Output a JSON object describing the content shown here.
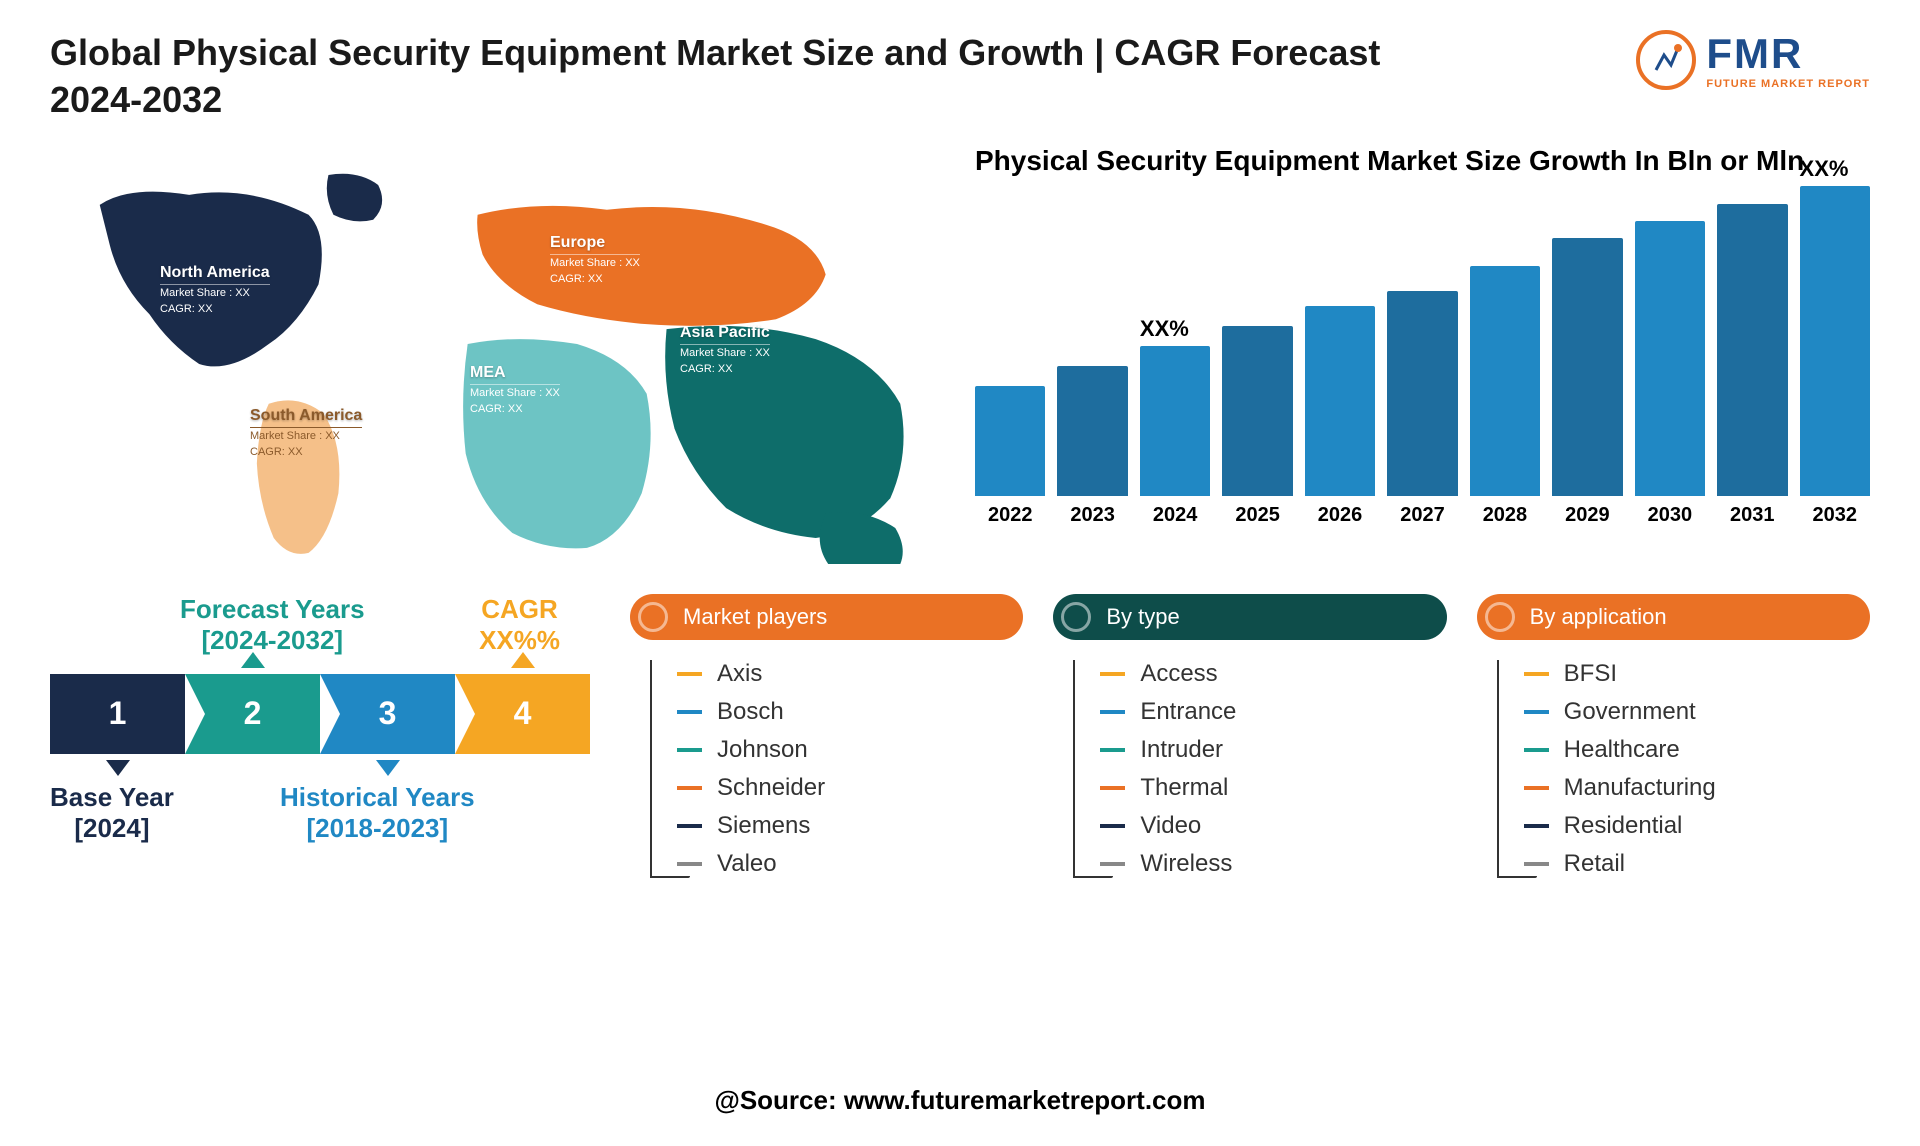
{
  "title": "Global Physical Security Equipment Market Size and Growth | CAGR Forecast 2024-2032",
  "logo": {
    "fm": "FMR",
    "tagline": "FUTURE MARKET REPORT"
  },
  "chart": {
    "title": "Physical Security Equipment Market Size Growth In Bln or Mln",
    "type": "bar",
    "years": [
      "2022",
      "2023",
      "2024",
      "2025",
      "2026",
      "2027",
      "2028",
      "2029",
      "2030",
      "2031",
      "2032"
    ],
    "heights": [
      110,
      130,
      150,
      170,
      190,
      205,
      230,
      258,
      275,
      292,
      310
    ],
    "colors": [
      "#2088c4",
      "#1e6d9e",
      "#2088c4",
      "#1e6d9e",
      "#2088c4",
      "#1e6d9e",
      "#2088c4",
      "#1e6d9e",
      "#2088c4",
      "#1e6d9e",
      "#2088c4"
    ],
    "annotations": [
      {
        "index": 2,
        "text": "XX%"
      },
      {
        "index": 10,
        "text": "XX%"
      }
    ],
    "label_fontsize": 20,
    "title_fontsize": 28,
    "background_color": "#ffffff"
  },
  "timeline": {
    "forecast_label": "Forecast Years\n[2024-2032]",
    "cagr_label": "CAGR\nXX%%",
    "base_label": "Base Year\n[2024]",
    "hist_label": "Historical Years\n[2018-2023]",
    "cells": [
      "1",
      "2",
      "3",
      "4"
    ],
    "colors": {
      "base": "#1a2b4a",
      "forecast": "#1a9b8e",
      "hist": "#2088c4",
      "cagr": "#f5a623"
    }
  },
  "categories": {
    "players": {
      "label": "Market players",
      "header_color": "#ea7125",
      "items": [
        "Axis",
        "Bosch",
        "Johnson",
        "Schneider",
        "Siemens",
        "Valeo"
      ],
      "dash_colors": [
        "#f5a623",
        "#2088c4",
        "#1a9b8e",
        "#ea7125",
        "#1a2b4a",
        "#888"
      ]
    },
    "type": {
      "label": "By type",
      "header_color": "#0e4d4a",
      "items": [
        "Access",
        "Entrance",
        "Intruder",
        "Thermal",
        "Video",
        "Wireless"
      ],
      "dash_colors": [
        "#f5a623",
        "#2088c4",
        "#1a9b8e",
        "#ea7125",
        "#1a2b4a",
        "#888"
      ]
    },
    "application": {
      "label": "By application",
      "header_color": "#ea7125",
      "items": [
        "BFSI",
        "Government",
        "Healthcare",
        "Manufacturing",
        "Residential",
        "Retail"
      ],
      "dash_colors": [
        "#f5a623",
        "#2088c4",
        "#1a9b8e",
        "#ea7125",
        "#1a2b4a",
        "#888"
      ]
    }
  },
  "map": {
    "regions": [
      {
        "name": "North America",
        "share": "Market Share : XX",
        "cagr": "CAGR: XX",
        "color": "#1a2b4a"
      },
      {
        "name": "South America",
        "share": "Market Share : XX",
        "cagr": "CAGR: XX",
        "color": "#f5c089",
        "text_color": "#8b5a2b"
      },
      {
        "name": "Europe",
        "share": "Market Share : XX",
        "cagr": "CAGR: XX",
        "color": "#ea7125"
      },
      {
        "name": "MEA",
        "share": "Market Share : XX",
        "cagr": "CAGR: XX",
        "color": "#6dc4c4"
      },
      {
        "name": "Asia Pacific",
        "share": "Market Share : XX",
        "cagr": "CAGR: XX",
        "color": "#0e6d6a"
      }
    ]
  },
  "source": "@Source: www.futuremarketreport.com"
}
